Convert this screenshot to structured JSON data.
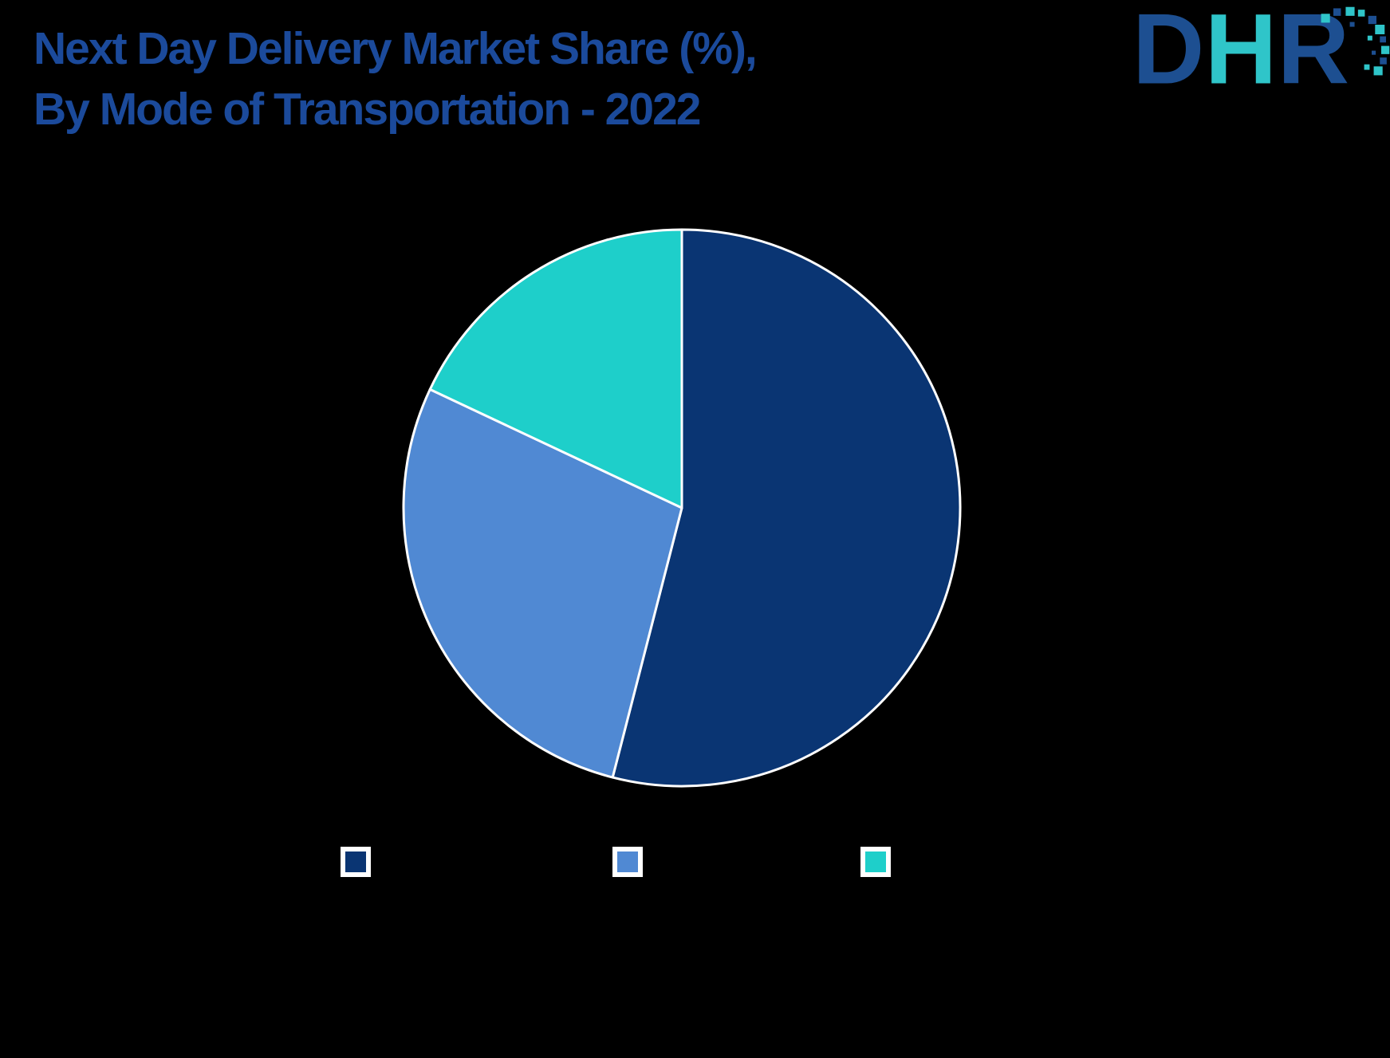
{
  "page": {
    "background": "#000000"
  },
  "title": {
    "line1": "Next Day Delivery Market Share (%),",
    "line2": "By Mode of Transportation - 2022",
    "color": "#1b4a9b"
  },
  "logo": {
    "letter_d": "D",
    "letter_h": "H",
    "letter_r": "R",
    "navy": "#1d4f91",
    "teal": "#2fc5c9"
  },
  "chart_data": {
    "type": "pie",
    "title": "Next Day Delivery Market Share (%), By Mode of Transportation - 2022",
    "units": "percent",
    "start_angle_deg": 0,
    "direction": "clockwise",
    "legend_position": "bottom",
    "data_labels_shown": false,
    "legend_labels_visible": false,
    "slice_border_color": "#ffffff",
    "series": [
      {
        "name": "",
        "value": 54,
        "color": "#0a3573"
      },
      {
        "name": "",
        "value": 28,
        "color": "#5089d3"
      },
      {
        "name": "",
        "value": 18,
        "color": "#1ecfca"
      }
    ]
  },
  "legend": {
    "items": [
      {
        "label": "",
        "color": "#0a3573"
      },
      {
        "label": "",
        "color": "#5089d3"
      },
      {
        "label": "",
        "color": "#1ecfca"
      }
    ]
  }
}
